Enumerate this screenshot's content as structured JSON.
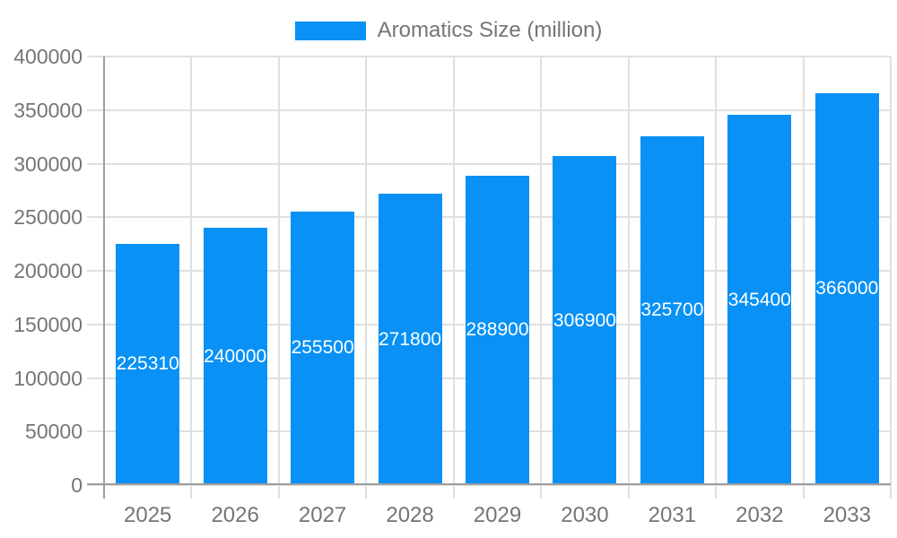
{
  "legend": {
    "label": "Aromatics Size (million)"
  },
  "colors": {
    "bar": "#0991f5",
    "grid": "#e0e0e0",
    "axis": "#9e9e9e",
    "tick_text": "#757575",
    "value_text": "#ffffff",
    "background": "#ffffff"
  },
  "chart_data": {
    "type": "bar",
    "title": "",
    "xlabel": "",
    "ylabel": "",
    "categories": [
      "2025",
      "2026",
      "2027",
      "2028",
      "2029",
      "2030",
      "2031",
      "2032",
      "2033"
    ],
    "values": [
      225310,
      240000,
      255500,
      271800,
      288900,
      306900,
      325700,
      345400,
      366000
    ],
    "series_label": "Aromatics Size (million)",
    "ylim": [
      0,
      400000
    ],
    "ytick_step": 50000,
    "ytick_labels": [
      "0",
      "50000",
      "100000",
      "150000",
      "200000",
      "250000",
      "300000",
      "350000",
      "400000"
    ],
    "grid": true,
    "legend_position": "top",
    "value_label_position": "inside-middle"
  }
}
